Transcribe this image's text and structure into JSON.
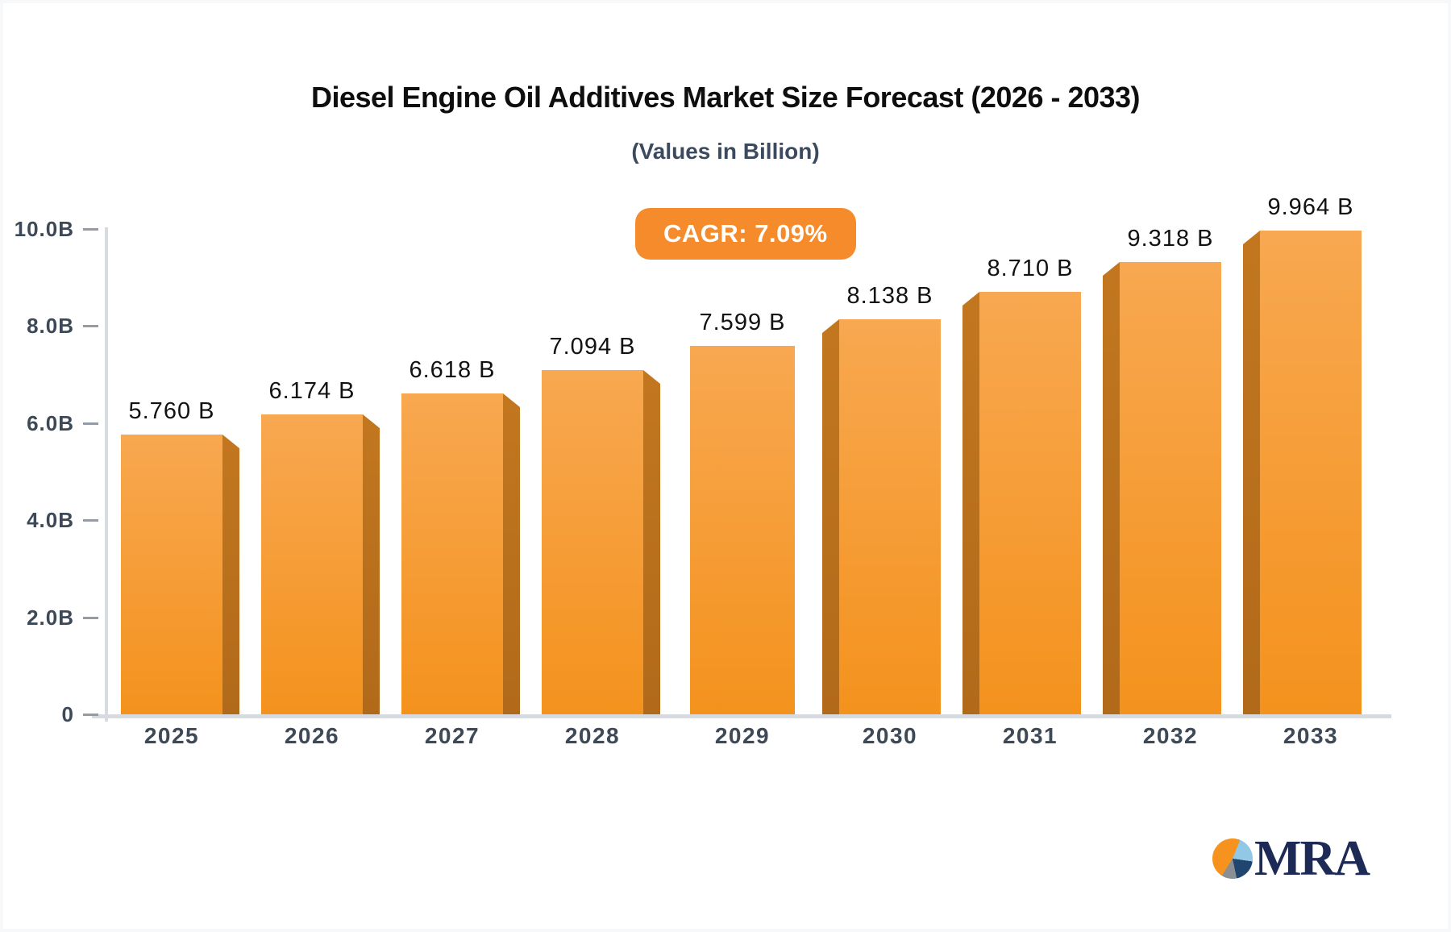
{
  "header": {
    "title": "Diesel Engine Oil Additives Market Size Forecast (2026 - 2033)",
    "subtitle": "(Values in Billion)"
  },
  "badge": {
    "label": "CAGR: 7.09%",
    "bg_color": "#f68b2b",
    "text_color": "#ffffff"
  },
  "chart_data": {
    "type": "bar",
    "title": "Diesel Engine Oil Additives Market Size Forecast (2026 - 2033)",
    "subtitle": "(Values in Billion)",
    "categories": [
      "2025",
      "2026",
      "2027",
      "2028",
      "2029",
      "2030",
      "2031",
      "2032",
      "2033"
    ],
    "values": [
      5.76,
      6.174,
      6.618,
      7.094,
      7.599,
      8.138,
      8.71,
      9.318,
      9.964
    ],
    "value_labels": [
      "5.760 B",
      "6.174 B",
      "6.618 B",
      "7.094 B",
      "7.599 B",
      "8.138 B",
      "8.710 B",
      "9.318 B",
      "9.964 B"
    ],
    "unit": "Billion",
    "cagr": "7.09%",
    "xlabel": "",
    "ylabel": "",
    "ylim": [
      0,
      10
    ],
    "grid": false,
    "legend": "none",
    "y_ticks": [
      {
        "value": 10,
        "label": "10.0B"
      },
      {
        "value": 8,
        "label": "8.0B"
      },
      {
        "value": 6,
        "label": "6.0B"
      },
      {
        "value": 4,
        "label": "4.0B"
      },
      {
        "value": 2,
        "label": "2.0B"
      },
      {
        "value": 0,
        "label": "0"
      }
    ],
    "bar_style_3d": true,
    "colors": {
      "bar_gradient_top": "#f8a851",
      "bar_gradient_bottom": "#f4921d",
      "bar_side": "#b96f1c",
      "axis_line": "#d7dade",
      "tick_mark": "#959ba4",
      "tick_label": "#3d4957",
      "value_label": "#121212"
    }
  },
  "logo": {
    "text": "MRA",
    "text_color": "#1c2a55",
    "pie_colors": [
      "#f6921e",
      "#92c7e6",
      "#20456e",
      "#8b8f94"
    ]
  }
}
